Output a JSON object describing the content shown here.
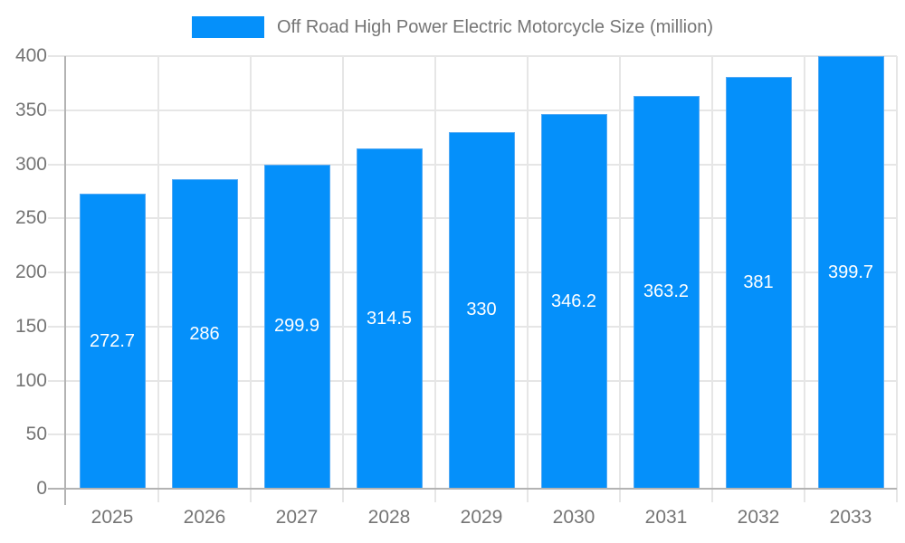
{
  "legend": {
    "label": "Off Road High Power Electric Motorcycle Size (million)"
  },
  "chart_data": {
    "type": "bar",
    "title": "Off Road High Power Electric Motorcycle Size (million)",
    "categories": [
      "2025",
      "2026",
      "2027",
      "2028",
      "2029",
      "2030",
      "2031",
      "2032",
      "2033"
    ],
    "values": [
      272.7,
      286,
      299.9,
      314.5,
      330,
      346.2,
      363.2,
      381,
      399.7
    ],
    "value_labels": [
      "272.7",
      "286",
      "299.9",
      "314.5",
      "330",
      "346.2",
      "363.2",
      "381",
      "399.7"
    ],
    "xlabel": "",
    "ylabel": "",
    "ylim": [
      0,
      400
    ],
    "ytick_step": 50,
    "ytick_labels": [
      "0",
      "50",
      "100",
      "150",
      "200",
      "250",
      "300",
      "350",
      "400"
    ],
    "grid": true,
    "legend_position": "top",
    "colors": {
      "bar_fill": "#0590fa",
      "bar_border": "#54aaf4",
      "bar_label_text": "#ffffff",
      "axis_text": "#757575",
      "gridline": "#e6e6e6",
      "axis_line": "#b3b3b3",
      "background": "#ffffff"
    }
  }
}
